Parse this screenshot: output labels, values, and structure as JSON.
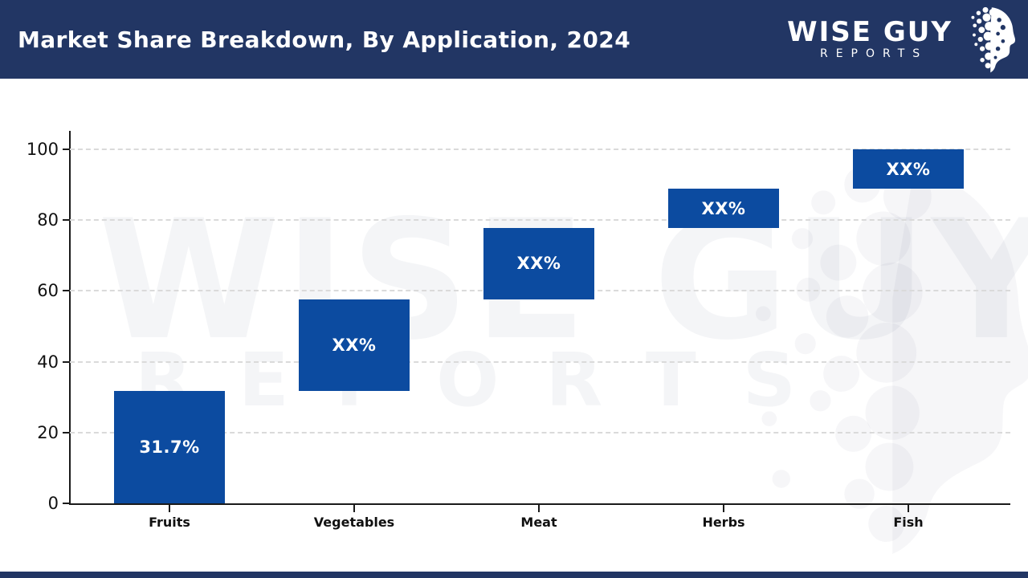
{
  "header": {
    "title": "Market Share Breakdown, By Application, 2024",
    "logo_wordmark": "WISE GUY",
    "logo_reports": "REPORTS",
    "bg_color": "#223664"
  },
  "watermark": {
    "line1": "WISE GUY",
    "line2": "REPORTS"
  },
  "chart_data": {
    "type": "bar",
    "subtype": "waterfall",
    "title": "Market Share Breakdown, By Application, 2024",
    "xlabel": "",
    "ylabel": "",
    "ylim": [
      0,
      100
    ],
    "yticks": [
      0,
      20,
      40,
      60,
      80,
      100
    ],
    "grid": "horizontal-dashed",
    "legend": "none",
    "bar_color": "#0c4ba0",
    "bar_label_color": "#ffffff",
    "categories": [
      "Fruits",
      "Vegetables",
      "Meat",
      "Herbs",
      "Fish"
    ],
    "segments": [
      {
        "category": "Fruits",
        "start": 0,
        "end": 31.7,
        "label": "31.7%"
      },
      {
        "category": "Vegetables",
        "start": 31.7,
        "end": 57.6,
        "label": "XX%"
      },
      {
        "category": "Meat",
        "start": 57.6,
        "end": 77.8,
        "label": "XX%"
      },
      {
        "category": "Herbs",
        "start": 77.8,
        "end": 88.8,
        "label": "XX%"
      },
      {
        "category": "Fish",
        "start": 88.8,
        "end": 100,
        "label": "XX%"
      }
    ]
  }
}
